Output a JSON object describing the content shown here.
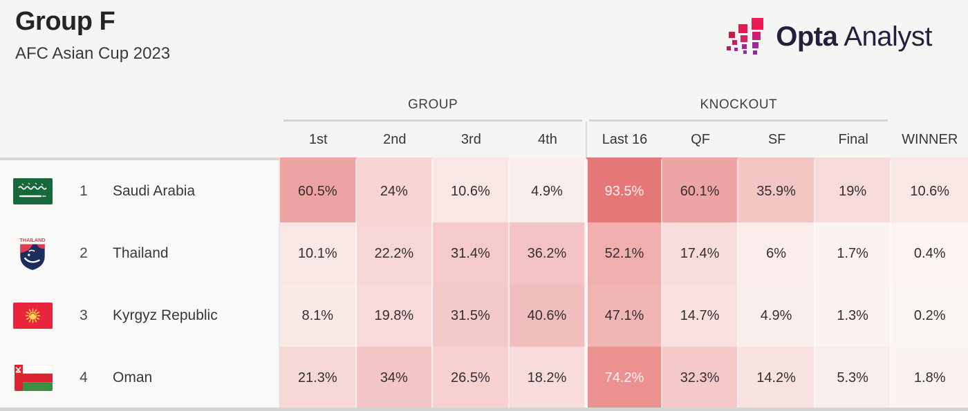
{
  "header": {
    "title": "Group F",
    "subtitle": "AFC Asian Cup 2023",
    "logo": {
      "brand_bold": "Opta",
      "brand_light": "Analyst"
    }
  },
  "table": {
    "sections": [
      {
        "label": "GROUP",
        "columns": [
          "1st",
          "2nd",
          "3rd",
          "4th"
        ]
      },
      {
        "label": "KNOCKOUT",
        "columns": [
          "Last 16",
          "QF",
          "SF",
          "Final"
        ]
      }
    ],
    "winner_label": "WINNER",
    "heat_low": "#fbf5f3",
    "heat_high": "#e56e6e",
    "white_text_threshold": 70,
    "rows": [
      {
        "rank": "1",
        "team": "Saudi Arabia",
        "flag": "saudi-arabia",
        "values": [
          60.5,
          24,
          10.6,
          4.9,
          93.5,
          60.1,
          35.9,
          19,
          10.6
        ],
        "labels": [
          "60.5%",
          "24%",
          "10.6%",
          "4.9%",
          "93.5%",
          "60.1%",
          "35.9%",
          "19%",
          "10.6%"
        ]
      },
      {
        "rank": "2",
        "team": "Thailand",
        "flag": "thailand",
        "values": [
          10.1,
          22.2,
          31.4,
          36.2,
          52.1,
          17.4,
          6,
          1.7,
          0.4
        ],
        "labels": [
          "10.1%",
          "22.2%",
          "31.4%",
          "36.2%",
          "52.1%",
          "17.4%",
          "6%",
          "1.7%",
          "0.4%"
        ]
      },
      {
        "rank": "3",
        "team": "Kyrgyz Republic",
        "flag": "kyrgyz-republic",
        "values": [
          8.1,
          19.8,
          31.5,
          40.6,
          47.1,
          14.7,
          4.9,
          1.3,
          0.2
        ],
        "labels": [
          "8.1%",
          "19.8%",
          "31.5%",
          "40.6%",
          "47.1%",
          "14.7%",
          "4.9%",
          "1.3%",
          "0.2%"
        ]
      },
      {
        "rank": "4",
        "team": "Oman",
        "flag": "oman",
        "values": [
          21.3,
          34,
          26.5,
          18.2,
          74.2,
          32.3,
          14.2,
          5.3,
          1.8
        ],
        "labels": [
          "21.3%",
          "34%",
          "26.5%",
          "18.2%",
          "74.2%",
          "32.3%",
          "14.2%",
          "5.3%",
          "1.8%"
        ]
      }
    ]
  },
  "chart_data": {
    "type": "heatmap",
    "title": "Group F",
    "subtitle": "AFC Asian Cup 2023",
    "column_groups": [
      {
        "label": "GROUP",
        "columns": [
          "1st",
          "2nd",
          "3rd",
          "4th"
        ]
      },
      {
        "label": "KNOCKOUT",
        "columns": [
          "Last 16",
          "QF",
          "SF",
          "Final"
        ]
      },
      {
        "label": "",
        "columns": [
          "WINNER"
        ]
      }
    ],
    "columns": [
      "1st",
      "2nd",
      "3rd",
      "4th",
      "Last 16",
      "QF",
      "SF",
      "Final",
      "WINNER"
    ],
    "rows": [
      "Saudi Arabia",
      "Thailand",
      "Kyrgyz Republic",
      "Oman"
    ],
    "values_pct": [
      [
        60.5,
        24,
        10.6,
        4.9,
        93.5,
        60.1,
        35.9,
        19,
        10.6
      ],
      [
        10.1,
        22.2,
        31.4,
        36.2,
        52.1,
        17.4,
        6,
        1.7,
        0.4
      ],
      [
        8.1,
        19.8,
        31.5,
        40.6,
        47.1,
        14.7,
        4.9,
        1.3,
        0.2
      ],
      [
        21.3,
        34,
        26.5,
        18.2,
        74.2,
        32.3,
        14.2,
        5.3,
        1.8
      ]
    ],
    "color_scale": {
      "low": "#fbf5f3",
      "high": "#e56e6e",
      "white_text_at": 70
    },
    "legend_position": "none",
    "grid": false
  }
}
